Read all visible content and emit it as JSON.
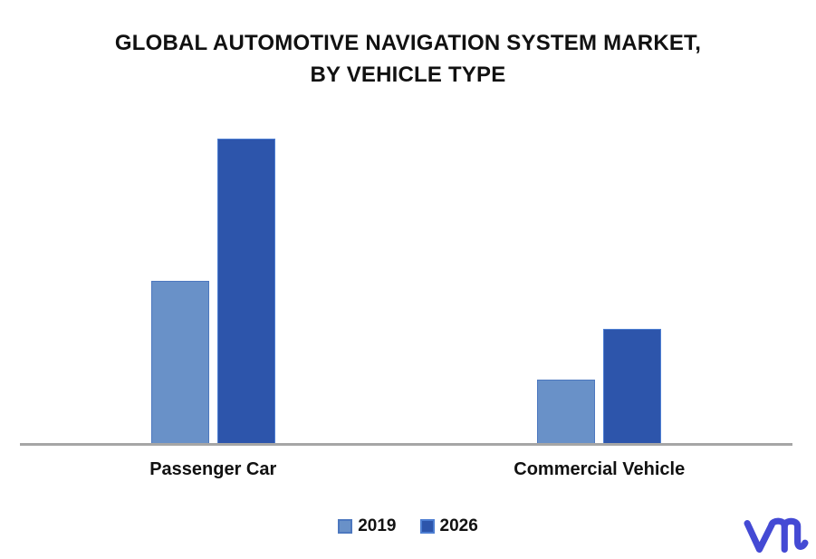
{
  "chart_data": {
    "type": "bar",
    "title": "GLOBAL AUTOMOTIVE NAVIGATION SYSTEM MARKET, BY VEHICLE TYPE",
    "title_lines": [
      "GLOBAL AUTOMOTIVE NAVIGATION SYSTEM MARKET,",
      "BY VEHICLE TYPE"
    ],
    "categories": [
      "Passenger Car",
      "Commercial Vehicle"
    ],
    "series": [
      {
        "name": "2019",
        "color": "#6991c8",
        "border_color": "#4d78bf",
        "values": [
          48,
          19
        ]
      },
      {
        "name": "2026",
        "color": "#2d55ab",
        "border_color": "#4d7ed2",
        "values": [
          90,
          34
        ]
      }
    ],
    "ylim": [
      0,
      100
    ],
    "value_axis_visible": false,
    "note": "no value axis or data labels shown; values are relative estimates scaled to 100",
    "grid": false,
    "legend_position": "bottom",
    "baseline_color": "#a6a6a6",
    "background_color": "#ffffff",
    "title_color": "#111111"
  },
  "logo": {
    "name": "vmr",
    "color": "#444ad4"
  }
}
